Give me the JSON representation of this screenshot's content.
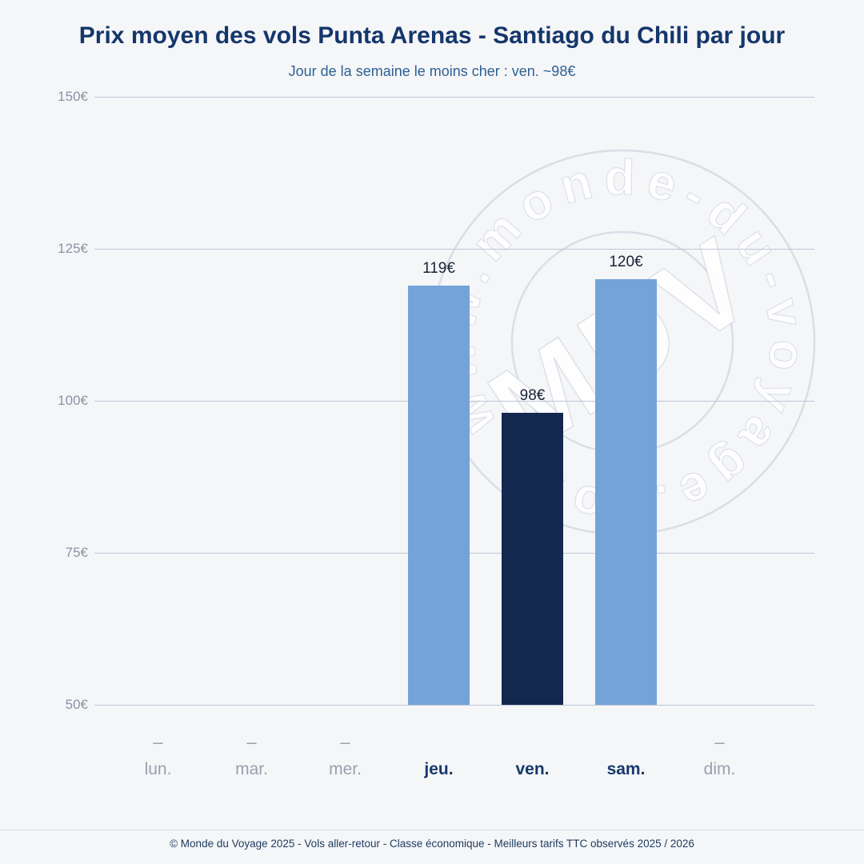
{
  "chart_data": {
    "type": "bar",
    "title": "Prix moyen des vols Punta Arenas - Santiago du Chili par jour",
    "subtitle": "Jour de la semaine le moins cher : ven. ~98€",
    "categories": [
      "lun.",
      "mar.",
      "mer.",
      "jeu.",
      "ven.",
      "sam.",
      "dim."
    ],
    "values": [
      null,
      null,
      null,
      119,
      98,
      120,
      null
    ],
    "value_labels": [
      "–",
      "–",
      "–",
      "119€",
      "98€",
      "120€",
      "–"
    ],
    "no_data_marker": "–",
    "ylim": [
      50,
      150
    ],
    "yticks": [
      50,
      75,
      100,
      125,
      150
    ],
    "ytick_labels": [
      "50€",
      "75€",
      "100€",
      "125€",
      "150€"
    ],
    "highlight_index": 4,
    "grid": true,
    "legend": null,
    "colors": {
      "background": "#f5f6f8",
      "title": "#14366b",
      "subtitle": "#2d6094",
      "grid": "#bcc6d4",
      "axis_label": "#8a93a3",
      "bar_default": "#74a3d9",
      "bar_highlight": "#12284f",
      "value_label": "#1a2438",
      "day_active": "#16386b",
      "day_inactive": "#98a1ae",
      "footer_text": "#1c3a5e"
    }
  },
  "watermark": {
    "ring_text": "www.monde-du-voyage.com",
    "center_text": "MDV"
  },
  "footer": {
    "text": "© Monde du Voyage 2025 - Vols aller-retour - Classe économique - Meilleurs tarifs TTC observés 2025 / 2026"
  }
}
